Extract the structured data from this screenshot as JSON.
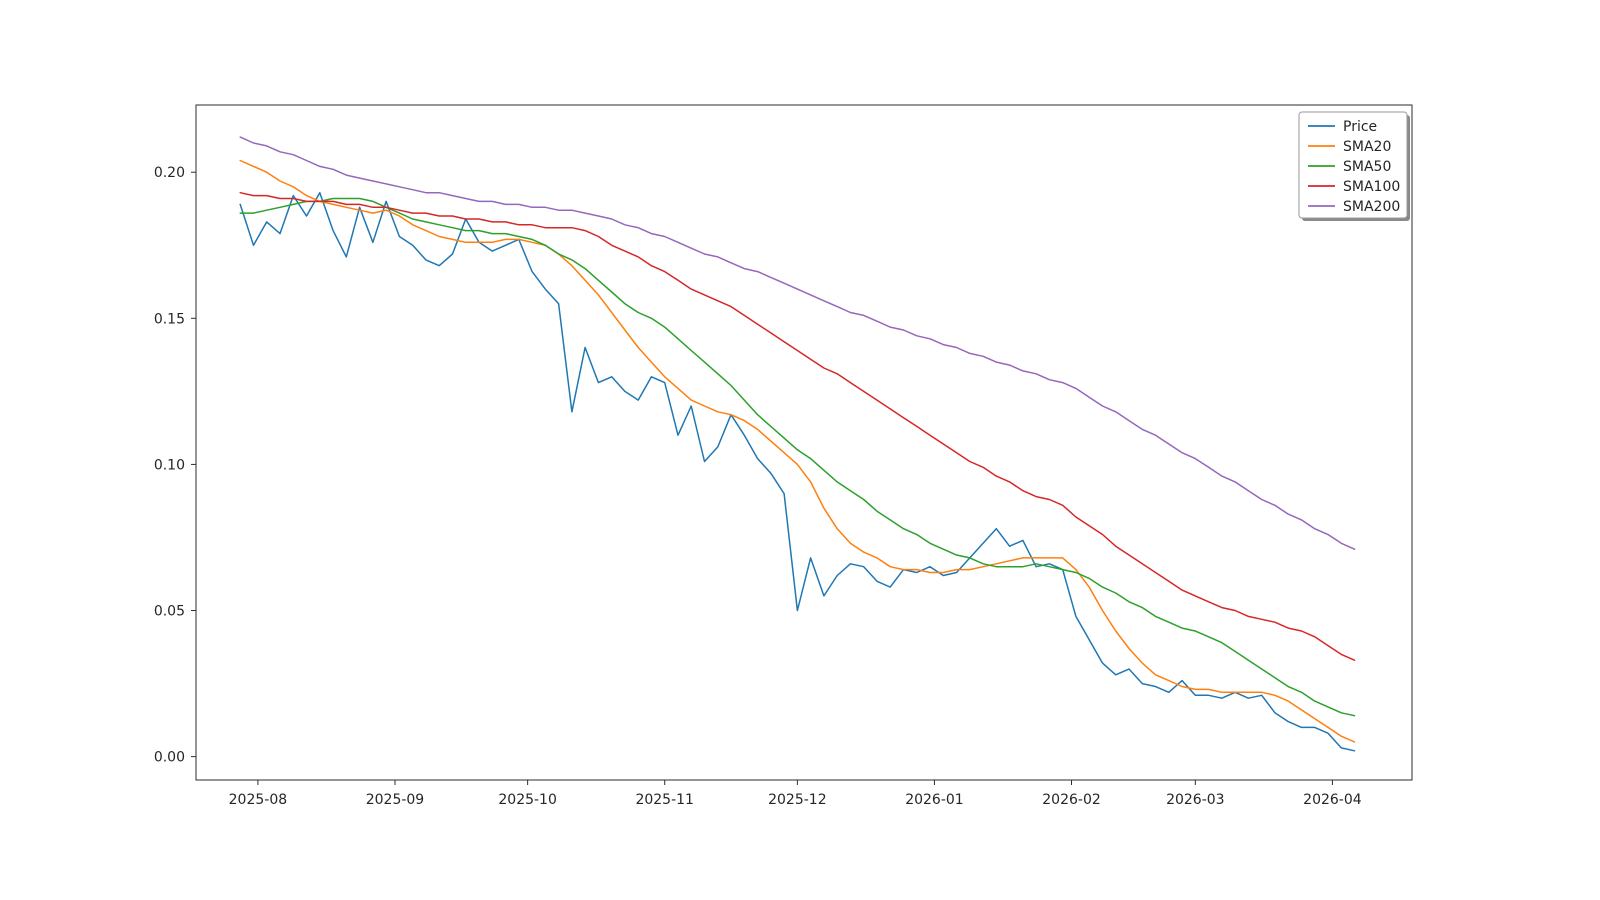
{
  "figure": {
    "background": "#ffffff",
    "frame_color": "#2b2b2b"
  },
  "chart_data": {
    "type": "line",
    "title": "",
    "xlabel": "",
    "ylabel": "",
    "grid": false,
    "legend": {
      "position": "upper right",
      "entries": [
        "Price",
        "SMA20",
        "SMA50",
        "SMA100",
        "SMA200"
      ]
    },
    "xlim": [
      "2025-07-18",
      "2026-04-19"
    ],
    "ylim": [
      -0.008,
      0.223
    ],
    "xticks": [
      "2025-08",
      "2025-09",
      "2025-10",
      "2025-11",
      "2025-12",
      "2026-01",
      "2026-02",
      "2026-03",
      "2026-04"
    ],
    "yticks": [
      "0.00",
      "0.05",
      "0.10",
      "0.15",
      "0.20"
    ],
    "x": [
      "2025-07-28",
      "2025-07-31",
      "2025-08-03",
      "2025-08-06",
      "2025-08-09",
      "2025-08-12",
      "2025-08-15",
      "2025-08-18",
      "2025-08-21",
      "2025-08-24",
      "2025-08-27",
      "2025-08-30",
      "2025-09-02",
      "2025-09-05",
      "2025-09-08",
      "2025-09-11",
      "2025-09-14",
      "2025-09-17",
      "2025-09-20",
      "2025-09-23",
      "2025-09-26",
      "2025-09-29",
      "2025-10-02",
      "2025-10-05",
      "2025-10-08",
      "2025-10-11",
      "2025-10-14",
      "2025-10-17",
      "2025-10-20",
      "2025-10-23",
      "2025-10-26",
      "2025-10-29",
      "2025-11-01",
      "2025-11-04",
      "2025-11-07",
      "2025-11-10",
      "2025-11-13",
      "2025-11-16",
      "2025-11-19",
      "2025-11-22",
      "2025-11-25",
      "2025-11-28",
      "2025-12-01",
      "2025-12-04",
      "2025-12-07",
      "2025-12-10",
      "2025-12-13",
      "2025-12-16",
      "2025-12-19",
      "2025-12-22",
      "2025-12-25",
      "2025-12-28",
      "2025-12-31",
      "2026-01-03",
      "2026-01-06",
      "2026-01-09",
      "2026-01-12",
      "2026-01-15",
      "2026-01-18",
      "2026-01-21",
      "2026-01-24",
      "2026-01-27",
      "2026-01-30",
      "2026-02-02",
      "2026-02-05",
      "2026-02-08",
      "2026-02-11",
      "2026-02-14",
      "2026-02-17",
      "2026-02-20",
      "2026-02-23",
      "2026-02-26",
      "2026-03-01",
      "2026-03-04",
      "2026-03-07",
      "2026-03-10",
      "2026-03-13",
      "2026-03-16",
      "2026-03-19",
      "2026-03-22",
      "2026-03-25",
      "2026-03-28",
      "2026-03-31",
      "2026-04-03",
      "2026-04-06"
    ],
    "series": [
      {
        "name": "Price",
        "color": "#1f77b4",
        "values": [
          0.189,
          0.175,
          0.183,
          0.179,
          0.192,
          0.185,
          0.193,
          0.18,
          0.171,
          0.188,
          0.176,
          0.19,
          0.178,
          0.175,
          0.17,
          0.168,
          0.172,
          0.184,
          0.176,
          0.173,
          0.175,
          0.177,
          0.166,
          0.16,
          0.155,
          0.118,
          0.14,
          0.128,
          0.13,
          0.125,
          0.122,
          0.13,
          0.128,
          0.11,
          0.12,
          0.101,
          0.106,
          0.117,
          0.11,
          0.102,
          0.097,
          0.09,
          0.05,
          0.068,
          0.055,
          0.062,
          0.066,
          0.065,
          0.06,
          0.058,
          0.064,
          0.063,
          0.065,
          0.062,
          0.063,
          0.068,
          0.073,
          0.078,
          0.072,
          0.074,
          0.065,
          0.066,
          0.064,
          0.048,
          0.04,
          0.032,
          0.028,
          0.03,
          0.025,
          0.024,
          0.022,
          0.026,
          0.021,
          0.021,
          0.02,
          0.022,
          0.02,
          0.021,
          0.015,
          0.012,
          0.01,
          0.01,
          0.008,
          0.003,
          0.002
        ]
      },
      {
        "name": "SMA20",
        "color": "#ff7f0e",
        "values": [
          0.204,
          0.202,
          0.2,
          0.197,
          0.195,
          0.192,
          0.19,
          0.189,
          0.188,
          0.187,
          0.186,
          0.187,
          0.185,
          0.182,
          0.18,
          0.178,
          0.177,
          0.176,
          0.176,
          0.176,
          0.177,
          0.177,
          0.176,
          0.175,
          0.172,
          0.168,
          0.163,
          0.158,
          0.152,
          0.146,
          0.14,
          0.135,
          0.13,
          0.126,
          0.122,
          0.12,
          0.118,
          0.117,
          0.115,
          0.112,
          0.108,
          0.104,
          0.1,
          0.094,
          0.085,
          0.078,
          0.073,
          0.07,
          0.068,
          0.065,
          0.064,
          0.064,
          0.063,
          0.063,
          0.064,
          0.064,
          0.065,
          0.066,
          0.067,
          0.068,
          0.068,
          0.068,
          0.068,
          0.064,
          0.058,
          0.05,
          0.043,
          0.037,
          0.032,
          0.028,
          0.026,
          0.024,
          0.023,
          0.023,
          0.022,
          0.022,
          0.022,
          0.022,
          0.021,
          0.019,
          0.016,
          0.013,
          0.01,
          0.007,
          0.005
        ]
      },
      {
        "name": "SMA50",
        "color": "#2ca02c",
        "values": [
          0.186,
          0.186,
          0.187,
          0.188,
          0.189,
          0.19,
          0.19,
          0.191,
          0.191,
          0.191,
          0.19,
          0.188,
          0.186,
          0.184,
          0.183,
          0.182,
          0.181,
          0.18,
          0.18,
          0.179,
          0.179,
          0.178,
          0.177,
          0.175,
          0.172,
          0.17,
          0.167,
          0.163,
          0.159,
          0.155,
          0.152,
          0.15,
          0.147,
          0.143,
          0.139,
          0.135,
          0.131,
          0.127,
          0.122,
          0.117,
          0.113,
          0.109,
          0.105,
          0.102,
          0.098,
          0.094,
          0.091,
          0.088,
          0.084,
          0.081,
          0.078,
          0.076,
          0.073,
          0.071,
          0.069,
          0.068,
          0.066,
          0.065,
          0.065,
          0.065,
          0.066,
          0.065,
          0.064,
          0.063,
          0.061,
          0.058,
          0.056,
          0.053,
          0.051,
          0.048,
          0.046,
          0.044,
          0.043,
          0.041,
          0.039,
          0.036,
          0.033,
          0.03,
          0.027,
          0.024,
          0.022,
          0.019,
          0.017,
          0.015,
          0.014
        ]
      },
      {
        "name": "SMA100",
        "color": "#d62728",
        "values": [
          0.193,
          0.192,
          0.192,
          0.191,
          0.191,
          0.19,
          0.19,
          0.19,
          0.189,
          0.189,
          0.188,
          0.188,
          0.187,
          0.186,
          0.186,
          0.185,
          0.185,
          0.184,
          0.184,
          0.183,
          0.183,
          0.182,
          0.182,
          0.181,
          0.181,
          0.181,
          0.18,
          0.178,
          0.175,
          0.173,
          0.171,
          0.168,
          0.166,
          0.163,
          0.16,
          0.158,
          0.156,
          0.154,
          0.151,
          0.148,
          0.145,
          0.142,
          0.139,
          0.136,
          0.133,
          0.131,
          0.128,
          0.125,
          0.122,
          0.119,
          0.116,
          0.113,
          0.11,
          0.107,
          0.104,
          0.101,
          0.099,
          0.096,
          0.094,
          0.091,
          0.089,
          0.088,
          0.086,
          0.082,
          0.079,
          0.076,
          0.072,
          0.069,
          0.066,
          0.063,
          0.06,
          0.057,
          0.055,
          0.053,
          0.051,
          0.05,
          0.048,
          0.047,
          0.046,
          0.044,
          0.043,
          0.041,
          0.038,
          0.035,
          0.033
        ]
      },
      {
        "name": "SMA200",
        "color": "#9467bd",
        "values": [
          0.212,
          0.21,
          0.209,
          0.207,
          0.206,
          0.204,
          0.202,
          0.201,
          0.199,
          0.198,
          0.197,
          0.196,
          0.195,
          0.194,
          0.193,
          0.193,
          0.192,
          0.191,
          0.19,
          0.19,
          0.189,
          0.189,
          0.188,
          0.188,
          0.187,
          0.187,
          0.186,
          0.185,
          0.184,
          0.182,
          0.181,
          0.179,
          0.178,
          0.176,
          0.174,
          0.172,
          0.171,
          0.169,
          0.167,
          0.166,
          0.164,
          0.162,
          0.16,
          0.158,
          0.156,
          0.154,
          0.152,
          0.151,
          0.149,
          0.147,
          0.146,
          0.144,
          0.143,
          0.141,
          0.14,
          0.138,
          0.137,
          0.135,
          0.134,
          0.132,
          0.131,
          0.129,
          0.128,
          0.126,
          0.123,
          0.12,
          0.118,
          0.115,
          0.112,
          0.11,
          0.107,
          0.104,
          0.102,
          0.099,
          0.096,
          0.094,
          0.091,
          0.088,
          0.086,
          0.083,
          0.081,
          0.078,
          0.076,
          0.073,
          0.071
        ]
      }
    ]
  }
}
